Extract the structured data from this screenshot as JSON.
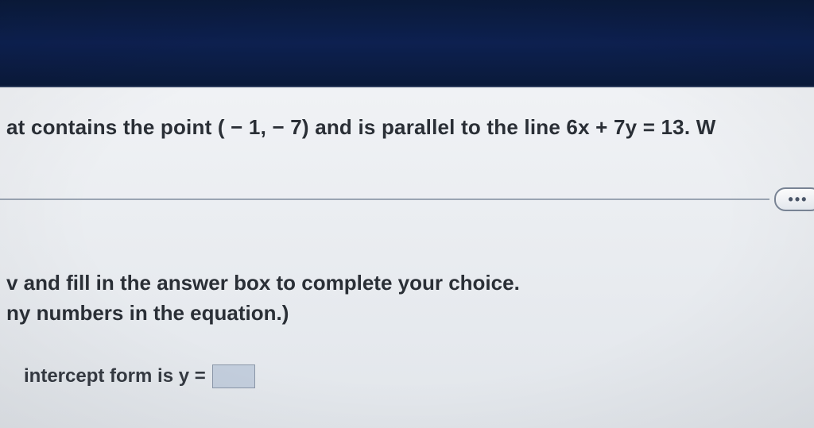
{
  "colors": {
    "header_bg": "#0d2050",
    "page_bg": "#e2e6eb",
    "text": "#2a2f36",
    "divider": "#9aa4b2",
    "box_fill": "#c3cedd",
    "box_border": "#8a96a8"
  },
  "typography": {
    "family": "Arial",
    "question_fontsize_pt": 20,
    "question_weight": "bold"
  },
  "question": {
    "line1": "at contains the point ( − 1, − 7) and is parallel to the line 6x + 7y = 13. W"
  },
  "dots_button": {
    "label": "•••"
  },
  "instructions": {
    "line1": "v and fill in the answer box to complete your choice.",
    "line2": "ny numbers in the equation.)"
  },
  "answer": {
    "prefix": "intercept form is y =",
    "value": ""
  }
}
